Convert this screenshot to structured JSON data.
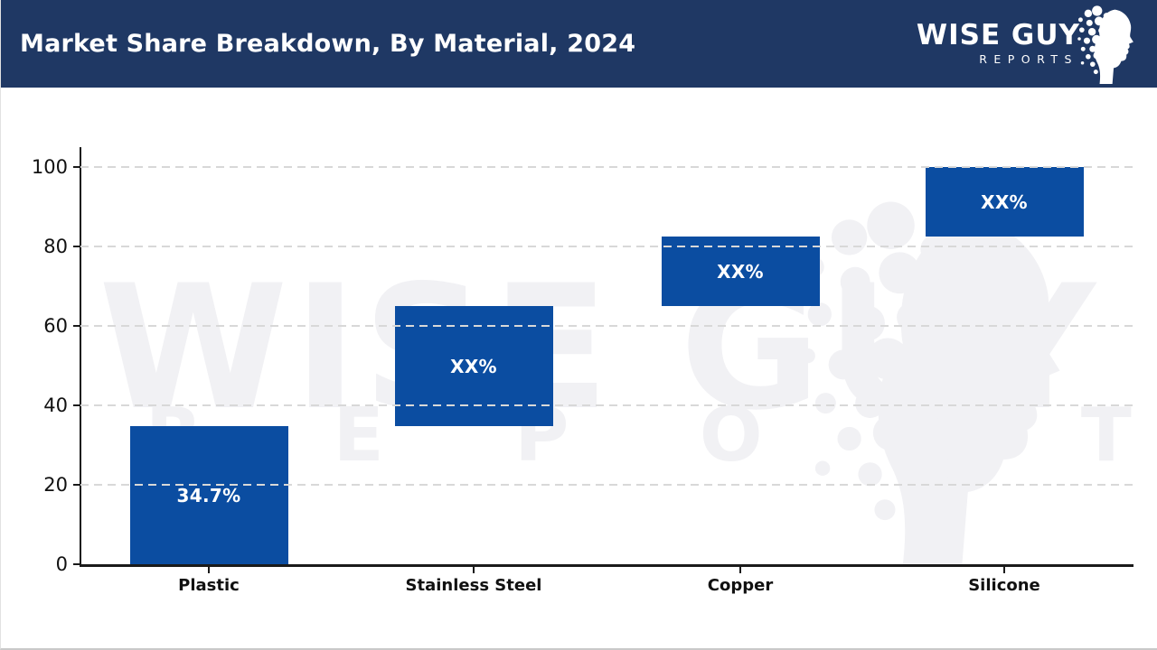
{
  "header": {
    "title": "Market Share Breakdown, By Material, 2024",
    "logo": {
      "line1": "WISE GUY",
      "line2": "REPORTS"
    }
  },
  "watermark": {
    "line1": "WISE GUY",
    "line2": "R E P O R T S"
  },
  "chart_data": {
    "type": "bar",
    "subtype": "waterfall",
    "title": "Market Share Breakdown, By Material, 2024",
    "categories": [
      "Plastic",
      "Stainless Steel",
      "Copper",
      "Silicone"
    ],
    "segments": [
      {
        "category": "Plastic",
        "start": 0,
        "end": 34.7,
        "label": "34.7%"
      },
      {
        "category": "Stainless Steel",
        "start": 34.7,
        "end": 65,
        "label": "XX%"
      },
      {
        "category": "Copper",
        "start": 65,
        "end": 82.5,
        "label": "XX%"
      },
      {
        "category": "Silicone",
        "start": 82.5,
        "end": 100,
        "label": "XX%"
      }
    ],
    "yticks": [
      0,
      20,
      40,
      60,
      80,
      100
    ],
    "ylim": [
      0,
      105
    ],
    "xlabel": "",
    "ylabel": "",
    "grid": "horizontal-dashed",
    "legend": "none",
    "bar_color": "#0B4DA1",
    "value_label_color": "#FFFFFF"
  }
}
